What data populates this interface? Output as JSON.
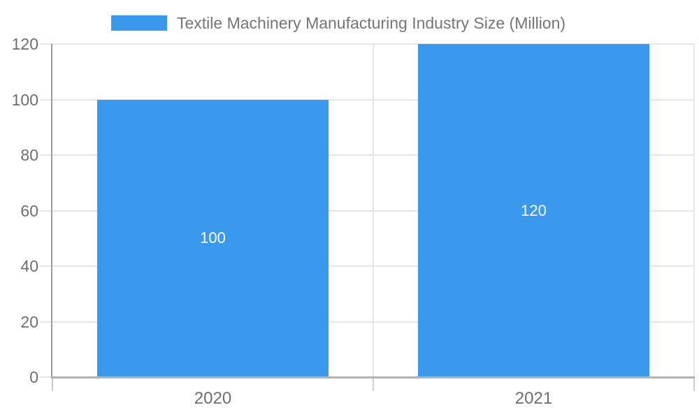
{
  "chart_data": {
    "type": "bar",
    "title": "Textile Machinery Manufacturing Industry Size (Million)",
    "categories": [
      "2020",
      "2021"
    ],
    "series": [
      {
        "name": "Textile Machinery Manufacturing Industry Size (Million)",
        "values": [
          100,
          120
        ]
      }
    ],
    "bar_value_labels": [
      "100",
      "120"
    ],
    "y_ticks": [
      0,
      20,
      40,
      60,
      80,
      100,
      120
    ],
    "ylim": [
      0,
      120
    ],
    "xlabel": "",
    "ylabel": "",
    "grid": true,
    "legend_position": "top",
    "colors": {
      "bar": "#3A99EC",
      "grid": "#e5e5e5",
      "outer_tick": "#cccccc",
      "axis_x": "#b3b3b3",
      "axis_y": "#9c9c9c",
      "legend_text": "#757575",
      "tick_label": "#6e6e6e",
      "value_label": "#ffffff",
      "background": "#ffffff"
    }
  }
}
